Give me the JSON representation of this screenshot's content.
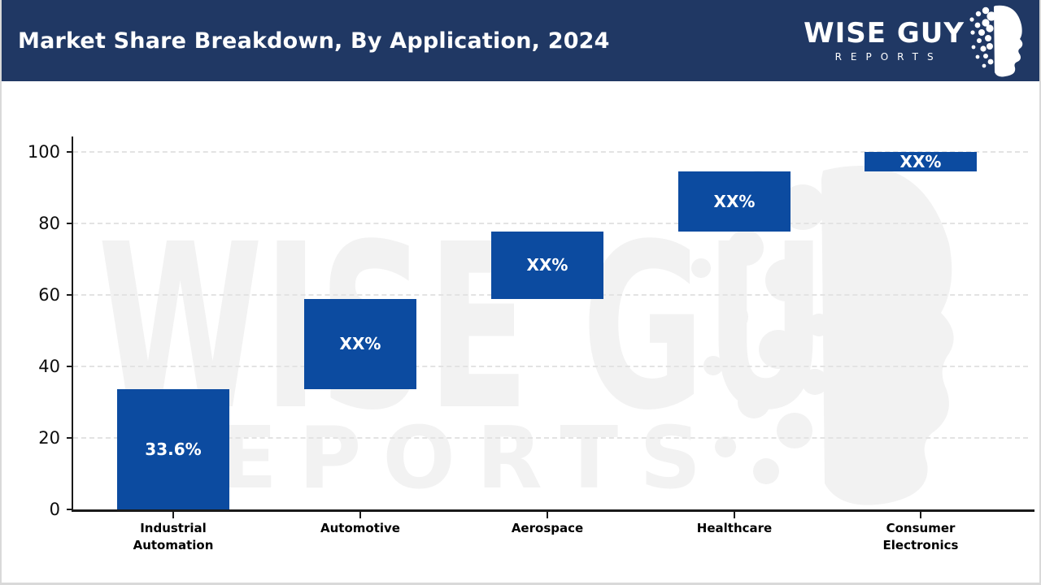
{
  "header": {
    "title": "Market Share Breakdown, By Application, 2024",
    "logo_line1": "WISE GUY",
    "logo_line2": "REPORTS"
  },
  "watermark": {
    "line1": "WISE GUY",
    "line2": "REPORTS"
  },
  "chart_data": {
    "type": "bar",
    "subtype": "waterfall",
    "title": "Market Share Breakdown, By Application, 2024",
    "categories": [
      "Industrial Automation",
      "Automotive",
      "Aerospace",
      "Healthcare",
      "Consumer Electronics"
    ],
    "segments": [
      {
        "category": "Industrial Automation",
        "start": 0,
        "end": 33.6,
        "label": "33.6%"
      },
      {
        "category": "Automotive",
        "start": 33.6,
        "end": 58.9,
        "label": "XX%"
      },
      {
        "category": "Aerospace",
        "start": 58.9,
        "end": 77.7,
        "label": "XX%"
      },
      {
        "category": "Healthcare",
        "start": 77.7,
        "end": 94.5,
        "label": "XX%"
      },
      {
        "category": "Consumer Electronics",
        "start": 94.5,
        "end": 100,
        "label": "XX%"
      }
    ],
    "xlabel": "",
    "ylabel": "",
    "ylim": [
      0,
      105
    ],
    "yticks": [
      0,
      20,
      40,
      60,
      80,
      100
    ],
    "grid": "horizontal-dashed",
    "legend": "none",
    "colors": {
      "bar": "#0c4ba0",
      "header_bg": "#203864",
      "bar_label_text": "#ffffff",
      "gridline": "#e3e3e3",
      "axis": "#1a1a1a",
      "watermark": "#f2f2f2"
    }
  }
}
